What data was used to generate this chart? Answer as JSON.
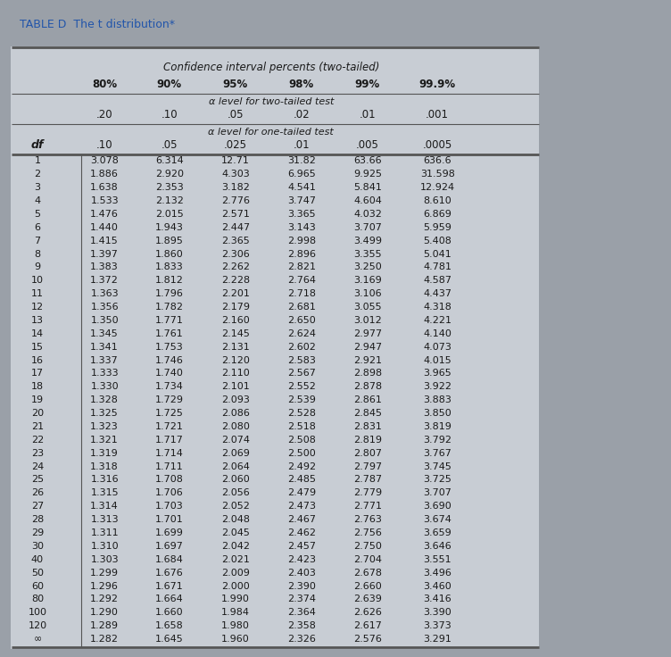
{
  "title": "TABLE D  The t distribution*",
  "conf_header": "Confidence interval percents (two-tailed)",
  "conf_percents": [
    "80%",
    "90%",
    "95%",
    "98%",
    "99%",
    "99.9%"
  ],
  "two_tailed_label": "α level for two-tailed test",
  "two_tailed_alphas": [
    ".20",
    ".10",
    ".05",
    ".02",
    ".01",
    ".001"
  ],
  "one_tailed_label": "α level for one-tailed test",
  "one_tailed_alphas": [
    ".10",
    ".05",
    ".025",
    ".01",
    ".005",
    ".0005"
  ],
  "df_label": "df",
  "df_values": [
    "1",
    "2",
    "3",
    "4",
    "5",
    "6",
    "7",
    "8",
    "9",
    "10",
    "11",
    "12",
    "13",
    "14",
    "15",
    "16",
    "17",
    "18",
    "19",
    "20",
    "21",
    "22",
    "23",
    "24",
    "25",
    "26",
    "27",
    "28",
    "29",
    "30",
    "40",
    "50",
    "60",
    "80",
    "100",
    "120",
    "∞"
  ],
  "table_data": [
    [
      "3.078",
      "6.314",
      "12.71",
      "31.82",
      "63.66",
      "636.6"
    ],
    [
      "1.886",
      "2.920",
      "4.303",
      "6.965",
      "9.925",
      "31.598"
    ],
    [
      "1.638",
      "2.353",
      "3.182",
      "4.541",
      "5.841",
      "12.924"
    ],
    [
      "1.533",
      "2.132",
      "2.776",
      "3.747",
      "4.604",
      "8.610"
    ],
    [
      "1.476",
      "2.015",
      "2.571",
      "3.365",
      "4.032",
      "6.869"
    ],
    [
      "1.440",
      "1.943",
      "2.447",
      "3.143",
      "3.707",
      "5.959"
    ],
    [
      "1.415",
      "1.895",
      "2.365",
      "2.998",
      "3.499",
      "5.408"
    ],
    [
      "1.397",
      "1.860",
      "2.306",
      "2.896",
      "3.355",
      "5.041"
    ],
    [
      "1.383",
      "1.833",
      "2.262",
      "2.821",
      "3.250",
      "4.781"
    ],
    [
      "1.372",
      "1.812",
      "2.228",
      "2.764",
      "3.169",
      "4.587"
    ],
    [
      "1.363",
      "1.796",
      "2.201",
      "2.718",
      "3.106",
      "4.437"
    ],
    [
      "1.356",
      "1.782",
      "2.179",
      "2.681",
      "3.055",
      "4.318"
    ],
    [
      "1.350",
      "1.771",
      "2.160",
      "2.650",
      "3.012",
      "4.221"
    ],
    [
      "1.345",
      "1.761",
      "2.145",
      "2.624",
      "2.977",
      "4.140"
    ],
    [
      "1.341",
      "1.753",
      "2.131",
      "2.602",
      "2.947",
      "4.073"
    ],
    [
      "1.337",
      "1.746",
      "2.120",
      "2.583",
      "2.921",
      "4.015"
    ],
    [
      "1.333",
      "1.740",
      "2.110",
      "2.567",
      "2.898",
      "3.965"
    ],
    [
      "1.330",
      "1.734",
      "2.101",
      "2.552",
      "2.878",
      "3.922"
    ],
    [
      "1.328",
      "1.729",
      "2.093",
      "2.539",
      "2.861",
      "3.883"
    ],
    [
      "1.325",
      "1.725",
      "2.086",
      "2.528",
      "2.845",
      "3.850"
    ],
    [
      "1.323",
      "1.721",
      "2.080",
      "2.518",
      "2.831",
      "3.819"
    ],
    [
      "1.321",
      "1.717",
      "2.074",
      "2.508",
      "2.819",
      "3.792"
    ],
    [
      "1.319",
      "1.714",
      "2.069",
      "2.500",
      "2.807",
      "3.767"
    ],
    [
      "1.318",
      "1.711",
      "2.064",
      "2.492",
      "2.797",
      "3.745"
    ],
    [
      "1.316",
      "1.708",
      "2.060",
      "2.485",
      "2.787",
      "3.725"
    ],
    [
      "1.315",
      "1.706",
      "2.056",
      "2.479",
      "2.779",
      "3.707"
    ],
    [
      "1.314",
      "1.703",
      "2.052",
      "2.473",
      "2.771",
      "3.690"
    ],
    [
      "1.313",
      "1.701",
      "2.048",
      "2.467",
      "2.763",
      "3.674"
    ],
    [
      "1.311",
      "1.699",
      "2.045",
      "2.462",
      "2.756",
      "3.659"
    ],
    [
      "1.310",
      "1.697",
      "2.042",
      "2.457",
      "2.750",
      "3.646"
    ],
    [
      "1.303",
      "1.684",
      "2.021",
      "2.423",
      "2.704",
      "3.551"
    ],
    [
      "1.299",
      "1.676",
      "2.009",
      "2.403",
      "2.678",
      "3.496"
    ],
    [
      "1.296",
      "1.671",
      "2.000",
      "2.390",
      "2.660",
      "3.460"
    ],
    [
      "1.292",
      "1.664",
      "1.990",
      "2.374",
      "2.639",
      "3.416"
    ],
    [
      "1.290",
      "1.660",
      "1.984",
      "2.364",
      "2.626",
      "3.390"
    ],
    [
      "1.289",
      "1.658",
      "1.980",
      "2.358",
      "2.617",
      "3.373"
    ],
    [
      "1.282",
      "1.645",
      "1.960",
      "2.326",
      "2.576",
      "3.291"
    ]
  ],
  "bg_color": "#c8cdd4",
  "text_color": "#1a1a1a",
  "title_color": "#2255aa",
  "outer_bg": "#9aa0a8",
  "line_color": "#555555"
}
